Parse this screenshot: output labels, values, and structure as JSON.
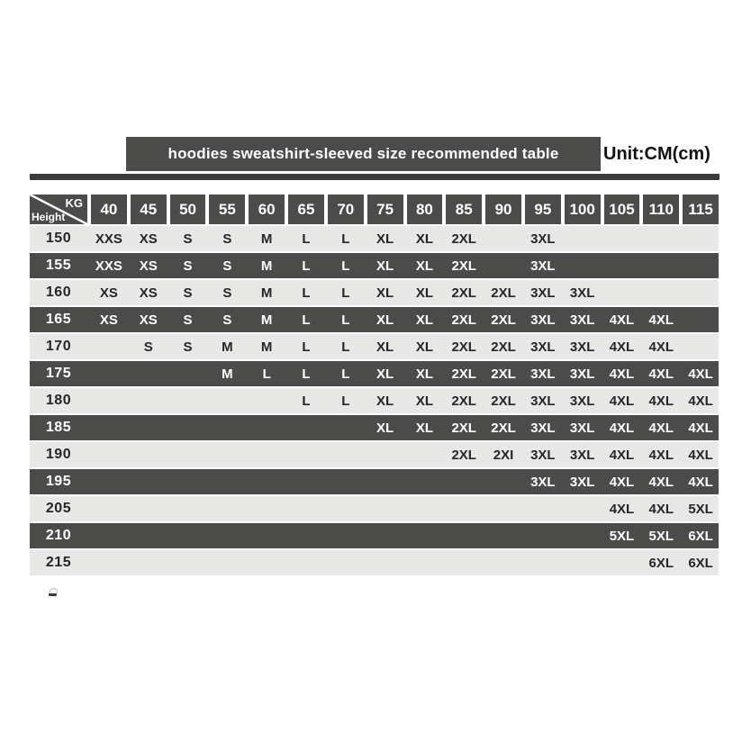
{
  "header": {
    "title": "hoodies sweatshirt-sleeved size recommended table",
    "unit_label": "Unit:CM(cm)"
  },
  "chart_data": {
    "type": "table",
    "title": "hoodies sweatshirt-sleeved size recommended table",
    "unit": "Unit:CM(cm)",
    "corner": {
      "top_right_label": "KG",
      "bottom_left_label": "Height"
    },
    "weight_columns_kg": [
      "40",
      "45",
      "50",
      "55",
      "60",
      "65",
      "70",
      "75",
      "80",
      "85",
      "90",
      "95",
      "100",
      "105",
      "110",
      "115"
    ],
    "rows": [
      {
        "height_cm": "150",
        "sizes": [
          "XXS",
          "XS",
          "S",
          "S",
          "M",
          "L",
          "L",
          "XL",
          "XL",
          "2XL",
          "",
          "3XL",
          "",
          "",
          "",
          ""
        ]
      },
      {
        "height_cm": "155",
        "sizes": [
          "XXS",
          "XS",
          "S",
          "S",
          "M",
          "L",
          "L",
          "XL",
          "XL",
          "2XL",
          "",
          "3XL",
          "",
          "",
          "",
          ""
        ]
      },
      {
        "height_cm": "160",
        "sizes": [
          "XS",
          "XS",
          "S",
          "S",
          "M",
          "L",
          "L",
          "XL",
          "XL",
          "2XL",
          "2XL",
          "3XL",
          "3XL",
          "",
          "",
          ""
        ]
      },
      {
        "height_cm": "165",
        "sizes": [
          "XS",
          "XS",
          "S",
          "S",
          "M",
          "L",
          "L",
          "XL",
          "XL",
          "2XL",
          "2XL",
          "3XL",
          "3XL",
          "4XL",
          "4XL",
          ""
        ]
      },
      {
        "height_cm": "170",
        "sizes": [
          "",
          "S",
          "S",
          "M",
          "M",
          "L",
          "L",
          "XL",
          "XL",
          "2XL",
          "2XL",
          "3XL",
          "3XL",
          "4XL",
          "4XL",
          ""
        ]
      },
      {
        "height_cm": "175",
        "sizes": [
          "",
          "",
          "",
          "M",
          "L",
          "L",
          "L",
          "XL",
          "XL",
          "2XL",
          "2XL",
          "3XL",
          "3XL",
          "4XL",
          "4XL",
          "4XL"
        ]
      },
      {
        "height_cm": "180",
        "sizes": [
          "",
          "",
          "",
          "",
          "",
          "L",
          "L",
          "XL",
          "XL",
          "2XL",
          "2XL",
          "3XL",
          "3XL",
          "4XL",
          "4XL",
          "4XL"
        ]
      },
      {
        "height_cm": "185",
        "sizes": [
          "",
          "",
          "",
          "",
          "",
          "",
          "",
          "XL",
          "XL",
          "2XL",
          "2XL",
          "3XL",
          "3XL",
          "4XL",
          "4XL",
          "4XL"
        ]
      },
      {
        "height_cm": "190",
        "sizes": [
          "",
          "",
          "",
          "",
          "",
          "",
          "",
          "",
          "",
          "2XL",
          "2XI",
          "3XL",
          "3XL",
          "4XL",
          "4XL",
          "4XL"
        ]
      },
      {
        "height_cm": "195",
        "sizes": [
          "",
          "",
          "",
          "",
          "",
          "",
          "",
          "",
          "",
          "",
          "",
          "3XL",
          "3XL",
          "4XL",
          "4XL",
          "4XL"
        ]
      },
      {
        "height_cm": "205",
        "sizes": [
          "",
          "",
          "",
          "",
          "",
          "",
          "",
          "",
          "",
          "",
          "",
          "",
          "",
          "4XL",
          "4XL",
          "5XL"
        ]
      },
      {
        "height_cm": "210",
        "sizes": [
          "",
          "",
          "",
          "",
          "",
          "",
          "",
          "",
          "",
          "",
          "",
          "",
          "",
          "5XL",
          "5XL",
          "6XL"
        ]
      },
      {
        "height_cm": "215",
        "sizes": [
          "",
          "",
          "",
          "",
          "",
          "",
          "",
          "",
          "",
          "",
          "",
          "",
          "",
          "",
          "6XL",
          "6XL"
        ]
      }
    ]
  },
  "colors": {
    "dark_gray": "#4b4b4a",
    "light_gray": "#e8e8e6",
    "rule": "#3d3d3c",
    "text_on_light": "#262626",
    "text_on_dark": "#ffffff"
  }
}
